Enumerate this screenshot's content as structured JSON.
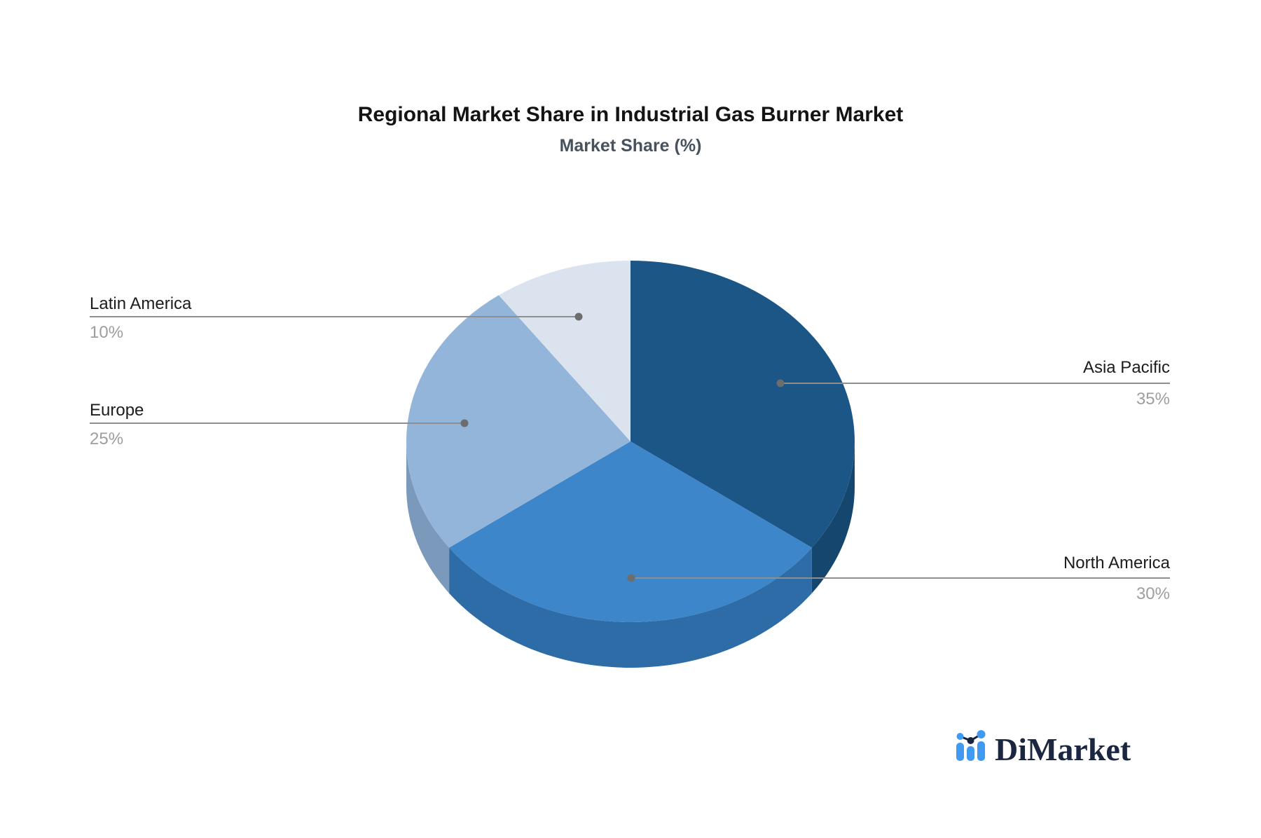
{
  "chart_data": {
    "type": "pie",
    "style": "pie3d",
    "title": "Regional Market Share in Industrial Gas Burner Market",
    "subtitle": "Market Share (%)",
    "unit": "%",
    "start_angle_deg": 0,
    "direction": "clockwise",
    "legend_position": "none",
    "labels": "leader-lines",
    "series": [
      {
        "name": "Asia Pacific",
        "value": 35,
        "pct": "35%",
        "color": "#1b5687",
        "side_color": "#15466e",
        "label_side": "right"
      },
      {
        "name": "North America",
        "value": 30,
        "pct": "30%",
        "color": "#3c86c9",
        "side_color": "#2d6ca6",
        "label_side": "right"
      },
      {
        "name": "Europe",
        "value": 25,
        "pct": "25%",
        "color": "#93b5d9",
        "side_color": "#7a99bb",
        "label_side": "left"
      },
      {
        "name": "Latin America",
        "value": 10,
        "pct": "10%",
        "color": "#dbe3ef",
        "side_color": "#b8c6da",
        "label_side": "left"
      }
    ]
  },
  "logo": {
    "text": "DiMarket",
    "bar_color": "#419af2",
    "accent_color": "#17233f"
  },
  "palette": {
    "background": "#ffffff",
    "leader_line": "#8f8f8f",
    "leader_dot": "#6d6d6d",
    "label_name": "#1c1c1c",
    "label_value": "#9e9e9e"
  }
}
